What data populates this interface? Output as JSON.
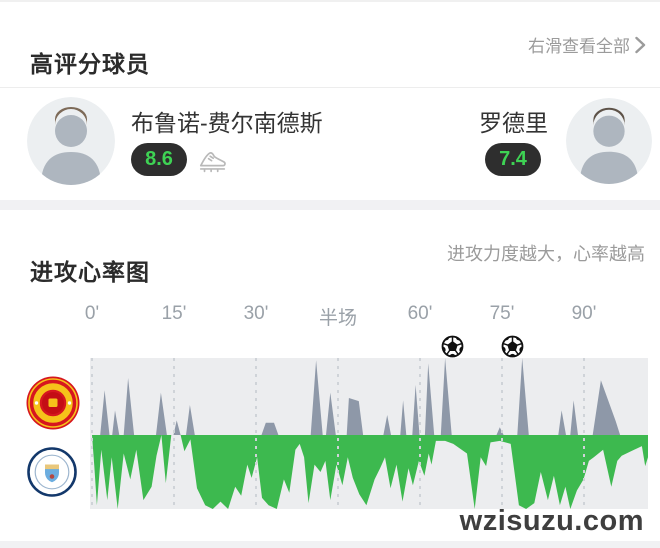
{
  "players_section": {
    "title": "高评分球员",
    "more_label": "右滑查看全部"
  },
  "players": [
    {
      "name": "布鲁诺-费尔南德斯",
      "rating": "8.6",
      "side": "left",
      "badge_icon": "boot-icon"
    },
    {
      "name": "罗德里",
      "rating": "7.4",
      "side": "right",
      "badge_icon": null
    }
  ],
  "attack_section": {
    "title": "进攻心率图",
    "subtitle": "进攻力度越大，心率越高"
  },
  "watermark": "wzisuzu.com",
  "colors": {
    "rating_green": "#3ed354",
    "pill_bg": "#2e2e2e",
    "hint_gray": "#9b9b9b"
  },
  "chart_data": {
    "type": "area",
    "title": "进攻心率图",
    "subtitle": "进攻力度越大，心率越高",
    "x_axis": {
      "tick_labels": [
        "0'",
        "15'",
        "30'",
        "半场",
        "60'",
        "75'",
        "90'"
      ],
      "tick_minutes": [
        0,
        15,
        30,
        45,
        60,
        75,
        90
      ],
      "xlim": [
        0,
        102
      ]
    },
    "ylim_intensity": [
      0,
      100
    ],
    "grid": "dashed-vertical",
    "legend_position": "left-logos",
    "goal_markers": [
      {
        "team": "Manchester United",
        "minute": 66,
        "icon": "soccer-ball-icon"
      },
      {
        "team": "Manchester United",
        "minute": 77,
        "icon": "soccer-ball-icon"
      }
    ],
    "colors": {
      "background": "#ecedef",
      "gridline": "#cfd3d8"
    },
    "series": [
      {
        "name": "Manchester United",
        "logo": "manchester-united-logo",
        "color": "#8e98a8",
        "direction": "up",
        "points": [
          [
            0,
            0
          ],
          [
            1.5,
            0
          ],
          [
            2.3,
            58
          ],
          [
            3.2,
            0
          ],
          [
            3.7,
            0
          ],
          [
            4.2,
            32
          ],
          [
            5,
            0
          ],
          [
            5.8,
            0
          ],
          [
            6.6,
            74
          ],
          [
            7.7,
            0
          ],
          [
            11.7,
            0
          ],
          [
            12.6,
            55
          ],
          [
            13.7,
            0
          ],
          [
            14.9,
            0
          ],
          [
            15.5,
            19
          ],
          [
            16.2,
            0
          ],
          [
            17.2,
            0
          ],
          [
            17.9,
            39
          ],
          [
            18.8,
            0
          ],
          [
            31,
            0
          ],
          [
            31.8,
            16
          ],
          [
            33.3,
            16
          ],
          [
            34.1,
            0
          ],
          [
            40,
            0
          ],
          [
            41,
            97
          ],
          [
            42.2,
            0
          ],
          [
            42.8,
            0
          ],
          [
            43.6,
            55
          ],
          [
            44.6,
            0
          ],
          [
            46.6,
            0
          ],
          [
            47,
            48
          ],
          [
            48.8,
            44
          ],
          [
            49.6,
            0
          ],
          [
            53.3,
            0
          ],
          [
            54,
            26
          ],
          [
            54.7,
            0
          ],
          [
            56.4,
            0
          ],
          [
            56.9,
            45
          ],
          [
            57.5,
            0
          ],
          [
            58.6,
            0
          ],
          [
            59.2,
            65
          ],
          [
            59.9,
            0
          ],
          [
            60.9,
            0
          ],
          [
            61.5,
            93
          ],
          [
            62.6,
            0
          ],
          [
            63.8,
            0
          ],
          [
            64.6,
            100
          ],
          [
            65.8,
            0
          ],
          [
            74,
            0
          ],
          [
            74.6,
            10
          ],
          [
            75.3,
            0
          ],
          [
            77.8,
            0
          ],
          [
            78.7,
            100
          ],
          [
            79.9,
            0
          ],
          [
            85.3,
            0
          ],
          [
            85.9,
            32
          ],
          [
            86.7,
            0
          ],
          [
            87.5,
            0
          ],
          [
            88.1,
            45
          ],
          [
            88.9,
            0
          ],
          [
            91.6,
            0
          ],
          [
            93.1,
            71
          ],
          [
            95.8,
            18
          ],
          [
            96.6,
            0
          ],
          [
            101.7,
            0
          ]
        ]
      },
      {
        "name": "Manchester City",
        "logo": "manchester-city-logo",
        "color": "#3db94f",
        "direction": "down",
        "points": [
          [
            0,
            0
          ],
          [
            0.4,
            40
          ],
          [
            0.9,
            95
          ],
          [
            1.7,
            20
          ],
          [
            2.8,
            88
          ],
          [
            3.6,
            30
          ],
          [
            4.7,
            100
          ],
          [
            5.8,
            25
          ],
          [
            7,
            60
          ],
          [
            8.1,
            20
          ],
          [
            9.4,
            88
          ],
          [
            10.9,
            70
          ],
          [
            11.8,
            28
          ],
          [
            12.7,
            0
          ],
          [
            13.5,
            65
          ],
          [
            14.5,
            0
          ],
          [
            16.2,
            0
          ],
          [
            16.9,
            22
          ],
          [
            18,
            6
          ],
          [
            19.2,
            72
          ],
          [
            20.7,
            95
          ],
          [
            22.1,
            100
          ],
          [
            23.5,
            90
          ],
          [
            24.9,
            100
          ],
          [
            26.2,
            70
          ],
          [
            27.3,
            82
          ],
          [
            28.4,
            40
          ],
          [
            29.2,
            58
          ],
          [
            30.2,
            30
          ],
          [
            31.1,
            85
          ],
          [
            32.3,
            95
          ],
          [
            33.8,
            100
          ],
          [
            35.1,
            60
          ],
          [
            36.1,
            78
          ],
          [
            37.2,
            20
          ],
          [
            38,
            12
          ],
          [
            38.8,
            30
          ],
          [
            39.6,
            92
          ],
          [
            40.7,
            40
          ],
          [
            41.8,
            50
          ],
          [
            42.7,
            35
          ],
          [
            43.6,
            88
          ],
          [
            44.7,
            40
          ],
          [
            45.8,
            68
          ],
          [
            46.8,
            30
          ],
          [
            47.7,
            58
          ],
          [
            48.9,
            80
          ],
          [
            50.2,
            95
          ],
          [
            51.7,
            60
          ],
          [
            52.7,
            45
          ],
          [
            53.6,
            30
          ],
          [
            54.6,
            72
          ],
          [
            55.7,
            40
          ],
          [
            56.8,
            90
          ],
          [
            57.9,
            45
          ],
          [
            58.7,
            68
          ],
          [
            59.8,
            35
          ],
          [
            60.8,
            55
          ],
          [
            61.6,
            25
          ],
          [
            62.1,
            40
          ],
          [
            62.9,
            8
          ],
          [
            64.6,
            8
          ],
          [
            66.1,
            12
          ],
          [
            68.6,
            25
          ],
          [
            70,
            100
          ],
          [
            71.1,
            30
          ],
          [
            72.1,
            42
          ],
          [
            72.9,
            10
          ],
          [
            74.6,
            8
          ],
          [
            76.6,
            12
          ],
          [
            78.1,
            95
          ],
          [
            79.4,
            100
          ],
          [
            80.9,
            92
          ],
          [
            82.1,
            50
          ],
          [
            83.4,
            88
          ],
          [
            84.5,
            55
          ],
          [
            85.6,
            95
          ],
          [
            86.6,
            70
          ],
          [
            87.5,
            100
          ],
          [
            88.7,
            75
          ],
          [
            89.9,
            60
          ],
          [
            90.9,
            35
          ],
          [
            91.8,
            30
          ],
          [
            93.5,
            20
          ],
          [
            95,
            70
          ],
          [
            96.1,
            35
          ],
          [
            96.9,
            28
          ],
          [
            98.6,
            22
          ],
          [
            100.6,
            15
          ],
          [
            101.2,
            42
          ],
          [
            101.7,
            30
          ]
        ]
      }
    ]
  }
}
